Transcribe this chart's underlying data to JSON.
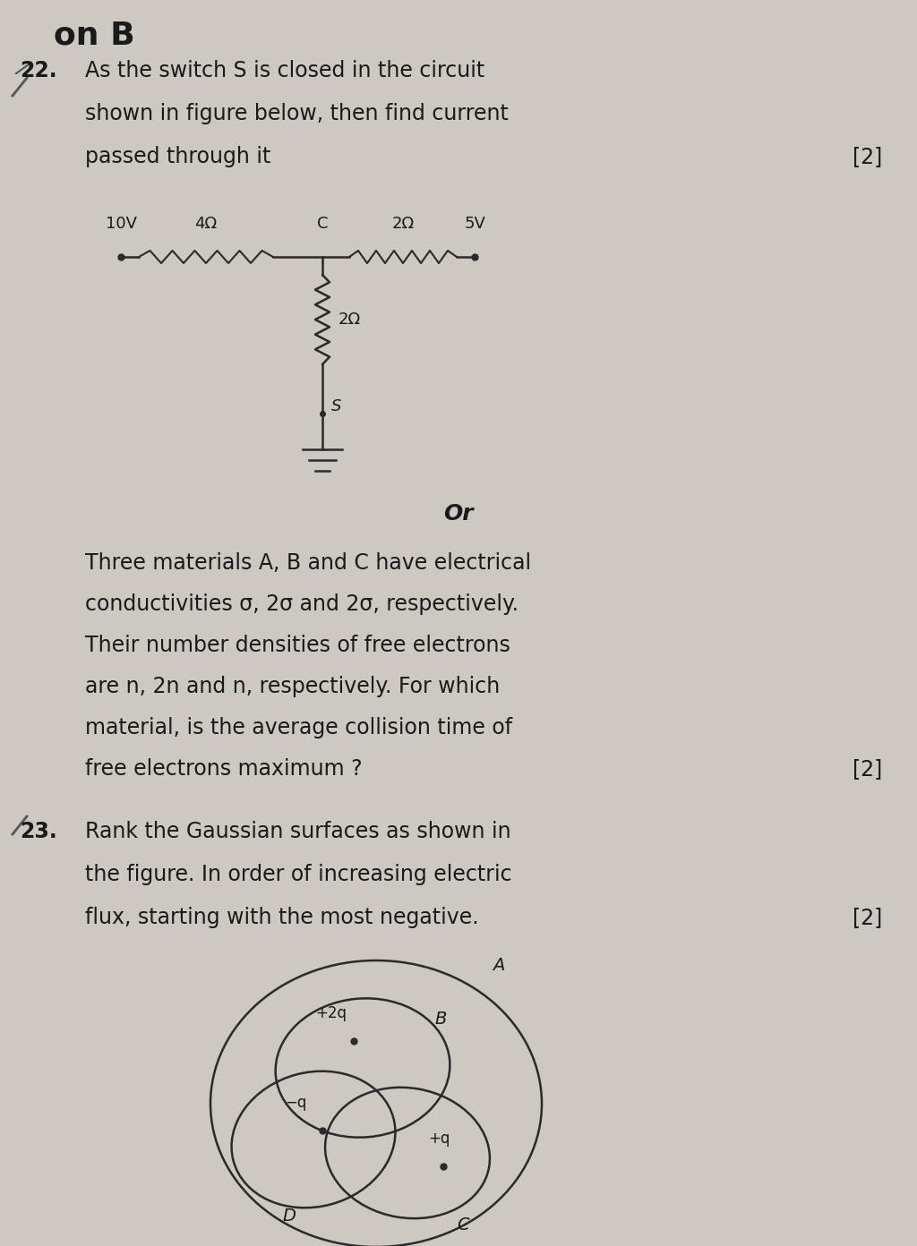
{
  "bg_color": "#ccc8c2",
  "text_color": "#1a1a1a",
  "title_top": "on B",
  "q22_number": "22.",
  "q22_text_line1": "As the switch S is closed in the circuit",
  "q22_text_line2": "shown in figure below, then find current",
  "q22_text_line3": "passed through it",
  "q22_marks": "[2]",
  "circuit_labels": {
    "v1": "10V",
    "r1": "4Ω",
    "node_c": "C",
    "r2": "2Ω",
    "v2": "5V",
    "r3": "2Ω",
    "switch": "S"
  },
  "or_text": "Or",
  "q22_or_line1": "Three materials A, B and C have electrical",
  "q22_or_line2": "conductivities σ, 2σ and 2σ, respectively.",
  "q22_or_line3": "Their number densities of free electrons",
  "q22_or_line4": "are n, 2n and n, respectively. For which",
  "q22_or_line5": "material, is the average collision time of",
  "q22_or_line6": "free electrons maximum ?",
  "q22_or_marks": "[2]",
  "q23_number": "23.",
  "q23_text_line1": "Rank the Gaussian surfaces as shown in",
  "q23_text_line2": "the figure. In order of increasing electric",
  "q23_text_line3": "flux, starting with the most negative.",
  "q23_marks": "[2]",
  "gaussian_labels": {
    "A": "A",
    "B": "B",
    "C": "C",
    "D": "D",
    "charge_2q": "+2q",
    "charge_neg_q": "−q",
    "charge_q": "+q"
  }
}
